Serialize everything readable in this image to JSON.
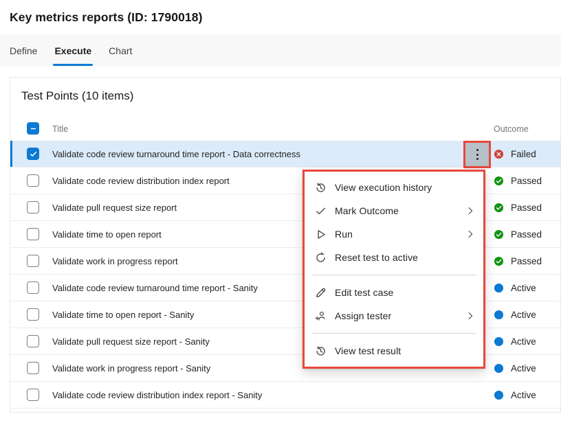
{
  "page": {
    "title": "Key metrics reports (ID: 1790018)"
  },
  "tabs": [
    {
      "label": "Define",
      "active": false
    },
    {
      "label": "Execute",
      "active": true
    },
    {
      "label": "Chart",
      "active": false
    }
  ],
  "table": {
    "heading": "Test Points (10 items)",
    "columns": {
      "title": "Title",
      "outcome": "Outcome"
    },
    "select_all_state": "indeterminate",
    "rows": [
      {
        "title": "Validate code review turnaround time report - Data correctness",
        "outcome": "Failed",
        "checked": true,
        "selected": true
      },
      {
        "title": "Validate code review distribution index report",
        "outcome": "Passed",
        "checked": false,
        "selected": false
      },
      {
        "title": "Validate pull request size report",
        "outcome": "Passed",
        "checked": false,
        "selected": false
      },
      {
        "title": "Validate time to open report",
        "outcome": "Passed",
        "checked": false,
        "selected": false
      },
      {
        "title": "Validate work in progress report",
        "outcome": "Passed",
        "checked": false,
        "selected": false
      },
      {
        "title": "Validate code review turnaround time report - Sanity",
        "outcome": "Active",
        "checked": false,
        "selected": false
      },
      {
        "title": "Validate time to open report - Sanity",
        "outcome": "Active",
        "checked": false,
        "selected": false
      },
      {
        "title": "Validate pull request size report - Sanity",
        "outcome": "Active",
        "checked": false,
        "selected": false
      },
      {
        "title": "Validate work in progress report - Sanity",
        "outcome": "Active",
        "checked": false,
        "selected": false
      },
      {
        "title": "Validate code review distribution index report - Sanity",
        "outcome": "Active",
        "checked": false,
        "selected": false
      }
    ]
  },
  "context_menu": {
    "items": [
      {
        "label": "View execution history",
        "icon": "history-icon",
        "submenu": false
      },
      {
        "label": "Mark Outcome",
        "icon": "checkmark-icon",
        "submenu": true
      },
      {
        "label": "Run",
        "icon": "play-icon",
        "submenu": true
      },
      {
        "label": "Reset test to active",
        "icon": "reset-icon",
        "submenu": false
      },
      {
        "divider": true
      },
      {
        "label": "Edit test case",
        "icon": "edit-icon",
        "submenu": false
      },
      {
        "label": "Assign tester",
        "icon": "assign-tester-icon",
        "submenu": true
      },
      {
        "divider": true
      },
      {
        "label": "View test result",
        "icon": "history-icon",
        "submenu": false
      }
    ]
  },
  "colors": {
    "accent_blue": "#0c79d2",
    "selected_row_bg": "#dcebf9",
    "annotation_red": "#e8473c",
    "kebab_button_bg": "#b7bfc7",
    "outcome": {
      "Failed": "#ce443e",
      "Passed": "#139413",
      "Active": "#0c79d2"
    }
  }
}
